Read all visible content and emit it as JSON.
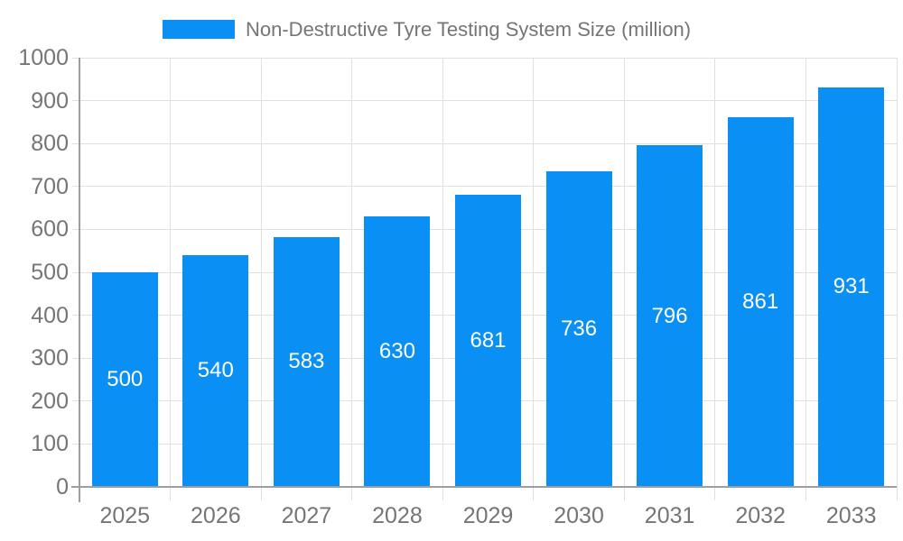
{
  "legend": {
    "label": "Non-Destructive Tyre Testing System Size (million)"
  },
  "chart_data": {
    "type": "bar",
    "title": "Non-Destructive Tyre Testing System Size (million)",
    "series_name": "Non-Destructive Tyre Testing System Size (million)",
    "categories": [
      "2025",
      "2026",
      "2027",
      "2028",
      "2029",
      "2030",
      "2031",
      "2032",
      "2033"
    ],
    "values": [
      500,
      540,
      583,
      630,
      681,
      736,
      796,
      861,
      931
    ],
    "xlabel": "",
    "ylabel": "",
    "ylim": [
      0,
      1000
    ],
    "ytick_interval": 100,
    "yticks": [
      0,
      100,
      200,
      300,
      400,
      500,
      600,
      700,
      800,
      900,
      1000
    ],
    "grid": true,
    "legend_position": "top",
    "value_label_position": "inside-center",
    "colors": {
      "bar": "#0a8ff5",
      "grid": "#e0e0e0",
      "axis": "#9e9e9e",
      "tick_text": "#757575",
      "value_text": "#ffffff",
      "background": "#ffffff"
    }
  }
}
